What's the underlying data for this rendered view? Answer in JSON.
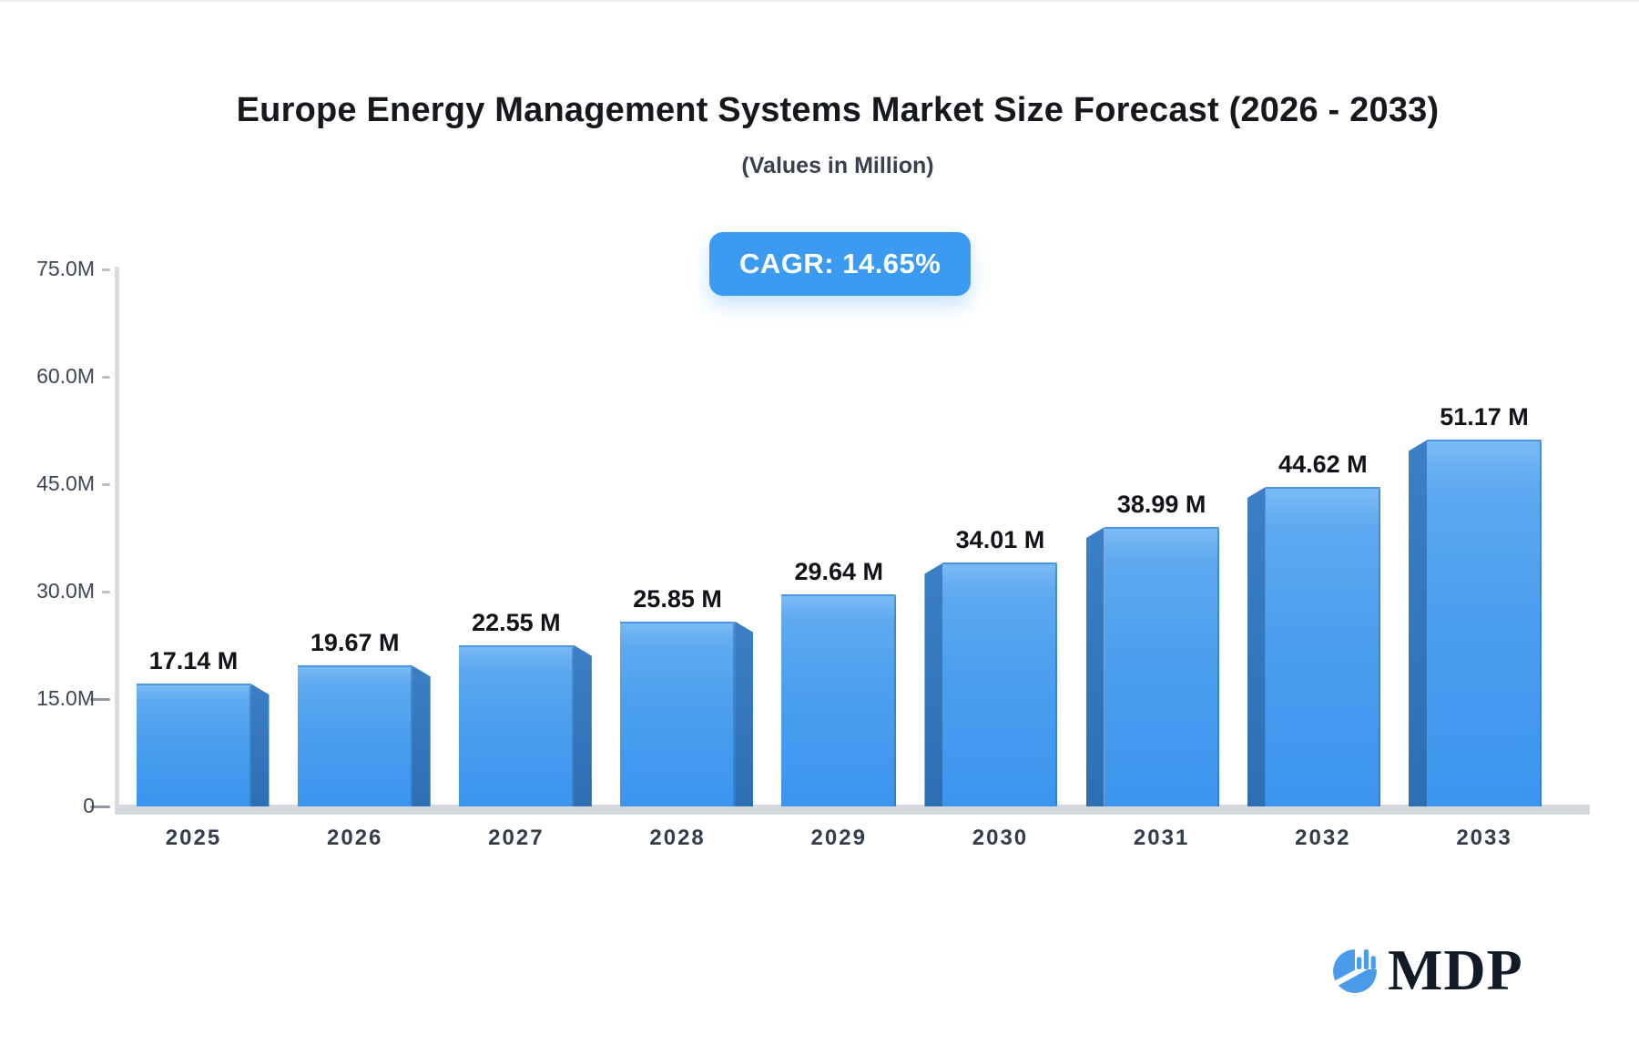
{
  "title": "Europe Energy Management Systems Market Size Forecast (2026 - 2033)",
  "subtitle": "(Values in Million)",
  "badge": {
    "label": "CAGR: 14.65%"
  },
  "logo": {
    "text": "MDP",
    "icon": "pie-chart-icon"
  },
  "colors": {
    "bar_front": "#459aef",
    "bar_front_highlight": "#7abaf4",
    "bar_side": "#2d6fb3",
    "badge_background": "#3b9af2",
    "axis_gray": "#d5d8dd",
    "label_dark": "#101419",
    "logo_blue": "#4a9be9",
    "logo_navy": "#111b27"
  },
  "chart_data": {
    "type": "bar",
    "title": "Europe Energy Management Systems Market Size Forecast (2026 - 2033)",
    "subtitle": "(Values in Million)",
    "annotation": "CAGR: 14.65%",
    "categories": [
      "2025",
      "2026",
      "2027",
      "2028",
      "2029",
      "2030",
      "2031",
      "2032",
      "2033"
    ],
    "values": [
      17.14,
      19.67,
      22.55,
      25.85,
      29.64,
      34.01,
      38.99,
      44.62,
      51.17
    ],
    "bar_labels": [
      "17.14 M",
      "19.67 M",
      "22.55 M",
      "25.85 M",
      "29.64 M",
      "34.01 M",
      "38.99 M",
      "44.62 M",
      "51.17 M"
    ],
    "xlabel": "",
    "ylabel": "",
    "ylim": [
      0,
      75
    ],
    "ytick_values": [
      0,
      15,
      30,
      45,
      60,
      75
    ],
    "ytick_labels": [
      "0",
      "15.0M",
      "30.0M",
      "45.0M",
      "60.0M",
      "75.0M"
    ],
    "grid": false,
    "legend": false,
    "bar_style": "3d-effect, side face toward chart center"
  }
}
